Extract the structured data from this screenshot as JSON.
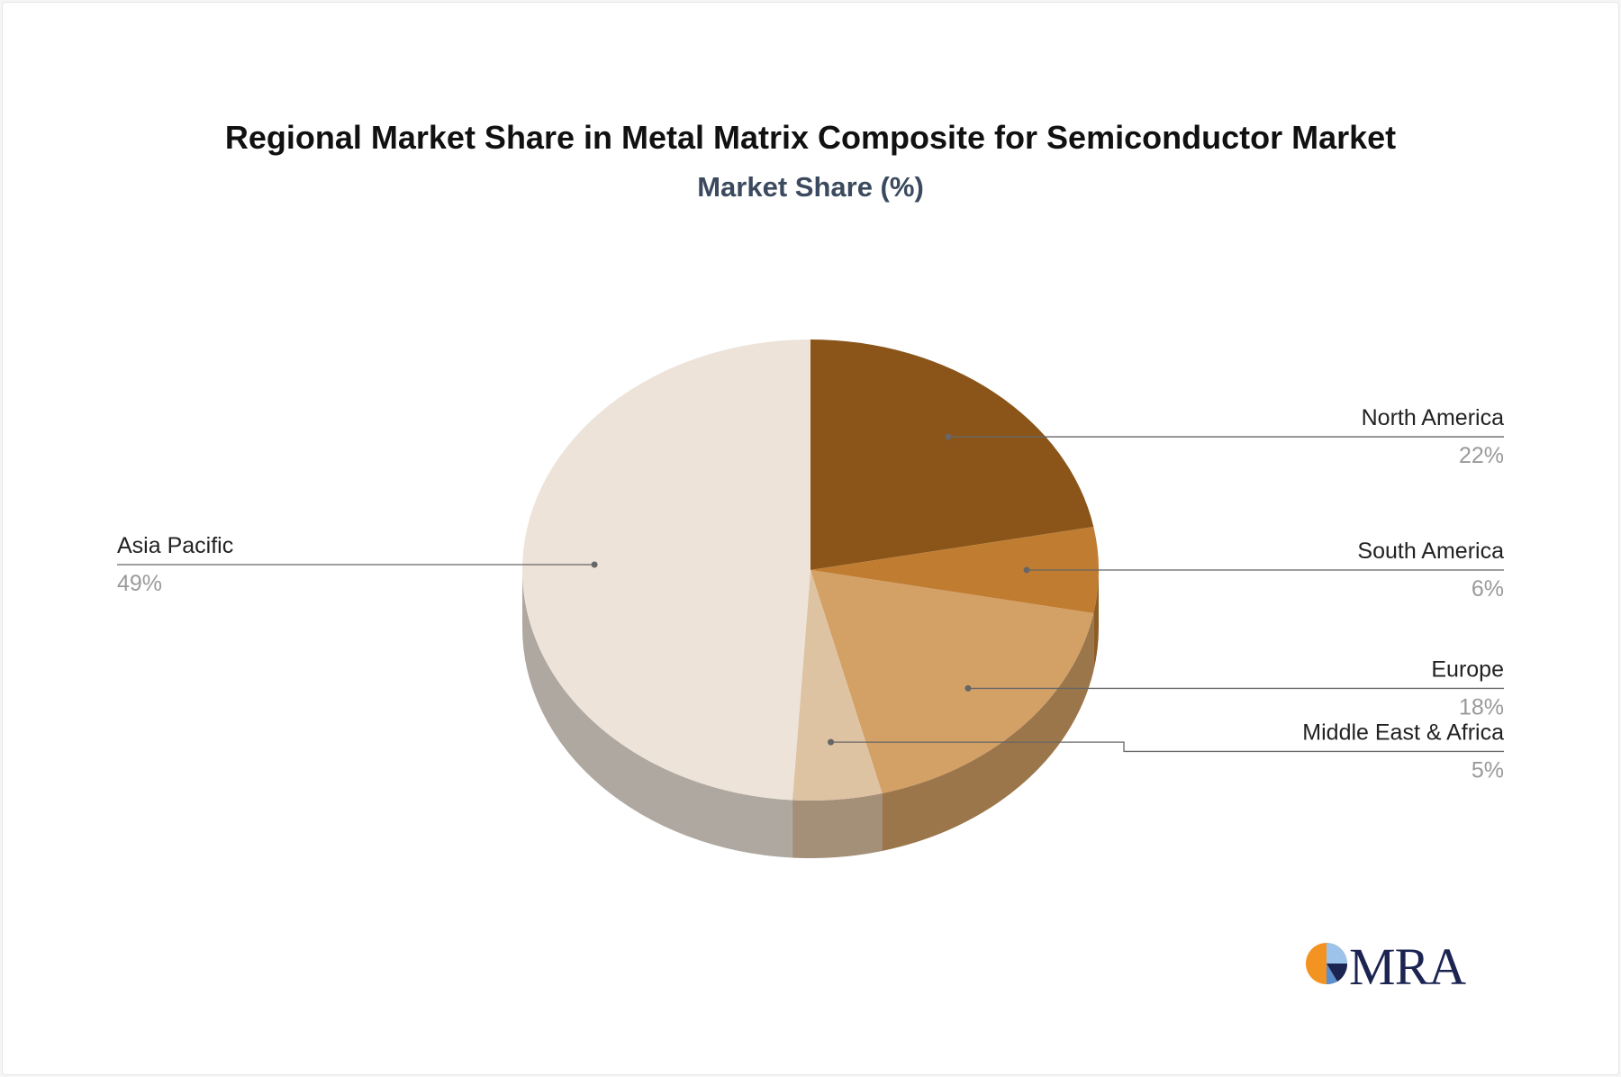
{
  "chart_data": {
    "type": "pie",
    "title": "Regional Market Share in Metal Matrix Composite for Semiconductor Market",
    "subtitle": "Market Share (%)",
    "unit": "%",
    "slices": [
      {
        "name": "North America",
        "value": 22,
        "value_label": "22%",
        "color": "#8b5519"
      },
      {
        "name": "South America",
        "value": 6,
        "value_label": "6%",
        "color": "#c07d32"
      },
      {
        "name": "Europe",
        "value": 18,
        "value_label": "18%",
        "color": "#d3a066"
      },
      {
        "name": "Middle East & Africa",
        "value": 5,
        "value_label": "5%",
        "color": "#dec3a3"
      },
      {
        "name": "Asia Pacific",
        "value": 49,
        "value_label": "49%",
        "color": "#ede3d9"
      }
    ],
    "label_placement": {
      "North America": "right",
      "South America": "right",
      "Europe": "right",
      "Middle East & Africa": "right",
      "Asia Pacific": "left"
    }
  },
  "logo": {
    "text": "MRA",
    "colors": {
      "orange": "#f39321",
      "navy": "#1c2452",
      "blue": "#5b8fd0",
      "light_blue": "#9dc3ea"
    }
  }
}
